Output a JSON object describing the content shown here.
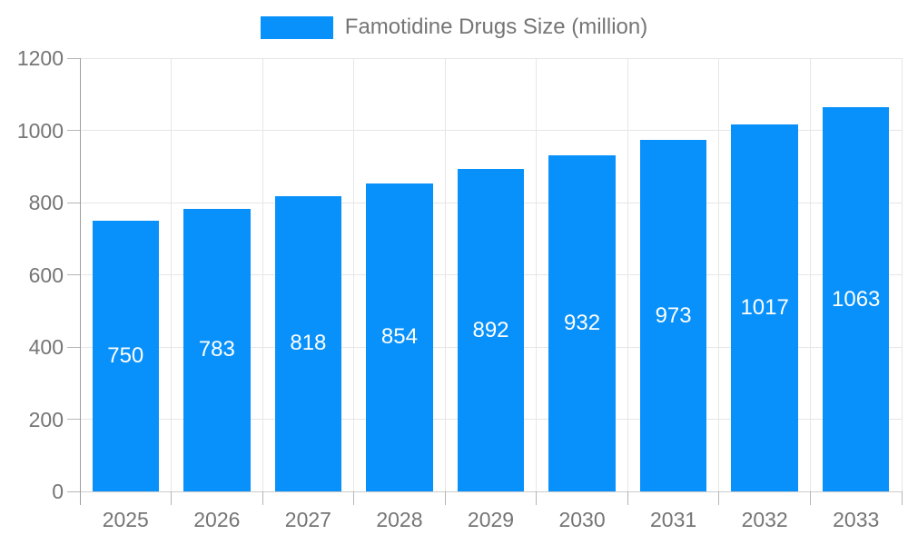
{
  "legend": {
    "label": "Famotidine Drugs Size (million)"
  },
  "chart_data": {
    "type": "bar",
    "title": "Famotidine Drugs Size (million)",
    "categories": [
      "2025",
      "2026",
      "2027",
      "2028",
      "2029",
      "2030",
      "2031",
      "2032",
      "2033"
    ],
    "values": [
      750,
      783,
      818,
      854,
      892,
      932,
      973,
      1017,
      1063
    ],
    "xlabel": "",
    "ylabel": "",
    "ylim": [
      0,
      1200
    ],
    "ytick_step": 200,
    "yticks": [
      0,
      200,
      400,
      600,
      800,
      1000,
      1200
    ],
    "grid": true,
    "legend_position": "top-center",
    "colors": {
      "bar": "#0891FA",
      "value_label": "#ffffff",
      "axis_text": "#757575",
      "gridline": "#e6e6e6",
      "baseline": "#cccccc",
      "axis_line": "#9e9e9e",
      "tick": "#b5b5b5"
    }
  }
}
